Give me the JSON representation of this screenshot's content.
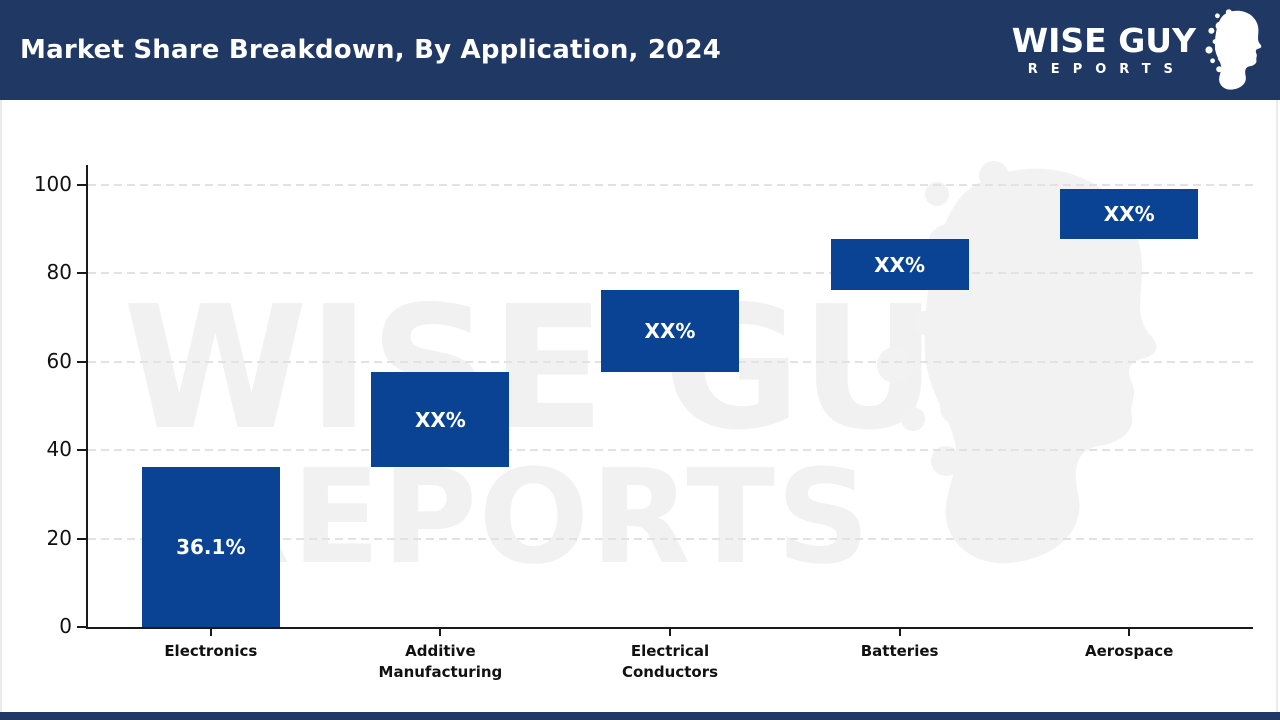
{
  "header": {
    "title": "Market Share Breakdown, By Application, 2024",
    "logo": {
      "line1": "WISE GUY",
      "line2": "REPORTS",
      "face_icon": "dotted-face-profile"
    }
  },
  "watermark": {
    "line1": "WISE GUY",
    "line2": "REPORTS",
    "face_icon": "dotted-face-profile"
  },
  "colors": {
    "header_bg": "#1F3864",
    "footer_bg": "#1F3864",
    "bar": "#0a4294",
    "bar_value_text": "#ffffff",
    "axis": "#1a1a1a",
    "gridline": "#e2e2e2",
    "watermark": "#f1f1f1"
  },
  "chart_data": {
    "type": "bar",
    "subtype": "waterfall",
    "title": "Market Share Breakdown, By Application, 2024",
    "categories": [
      "Electronics",
      "Additive\nManufacturing",
      "Electrical\nConductors",
      "Batteries",
      "Aerospace"
    ],
    "bars": [
      {
        "category": "Electronics",
        "start": 0,
        "end": 36.1,
        "label": "36.1%"
      },
      {
        "category": "Additive Manufacturing",
        "start": 36.1,
        "end": 57.6,
        "label": "XX%"
      },
      {
        "category": "Electrical Conductors",
        "start": 57.6,
        "end": 76.2,
        "label": "XX%"
      },
      {
        "category": "Batteries",
        "start": 76.2,
        "end": 87.7,
        "label": "XX%"
      },
      {
        "category": "Aerospace",
        "start": 87.7,
        "end": 99.2,
        "label": "XX%"
      }
    ],
    "xlabel": "",
    "ylabel": "",
    "ylim": [
      0,
      104
    ],
    "yticks": [
      0,
      20,
      40,
      60,
      80,
      100
    ],
    "grid": true,
    "grid_style": "dashed",
    "legend": false
  }
}
